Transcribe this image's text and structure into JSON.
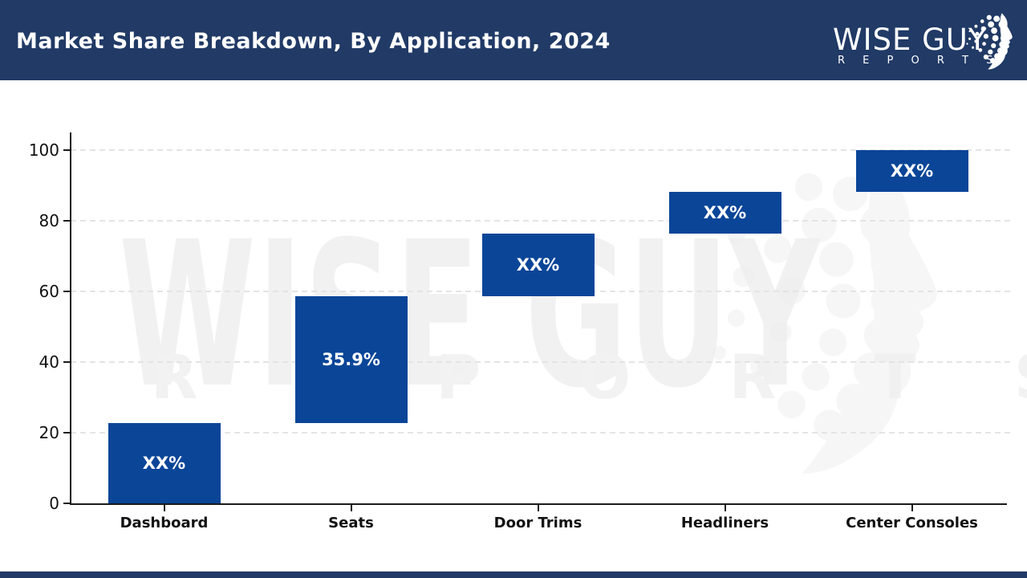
{
  "header": {
    "title": "Market Share Breakdown, By Application, 2024",
    "bg_color": "#213a66",
    "logo": {
      "line1": "WISE GUY",
      "line2": "R E P O R T S"
    }
  },
  "watermark": {
    "line1": "WISE GUY",
    "line2": "R E P O R T S"
  },
  "footer": {
    "bg_color": "#213a66"
  },
  "chart_data": {
    "type": "bar",
    "subtype": "waterfall",
    "title": "Market Share Breakdown, By Application, 2024",
    "categories": [
      "Dashboard",
      "Seats",
      "Door Trims",
      "Headliners",
      "Center Consoles"
    ],
    "series": [
      {
        "name": "Market Share %",
        "base": [
          0,
          22.7,
          58.6,
          76.4,
          88.2
        ],
        "values": [
          22.7,
          35.9,
          17.8,
          11.8,
          11.8
        ],
        "labels": [
          "XX%",
          "35.9%",
          "XX%",
          "XX%",
          "XX%"
        ]
      }
    ],
    "xlabel": "",
    "ylabel": "",
    "ylim": [
      0,
      100
    ],
    "yticks": [
      0,
      20,
      40,
      60,
      80,
      100
    ],
    "grid": "horizontal-dashed",
    "legend": "none",
    "bar_color": "#0a4598",
    "bar_label_color": "#ffffff"
  }
}
